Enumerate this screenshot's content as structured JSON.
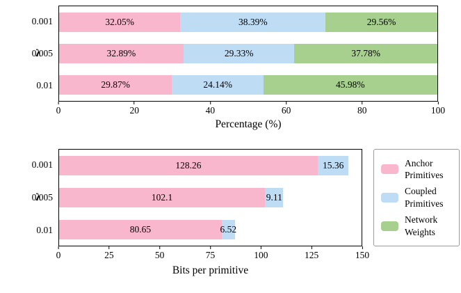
{
  "chart_data": [
    {
      "type": "bar",
      "subtype": "stacked-horizontal",
      "title": "",
      "xlabel": "Percentage (%)",
      "ylabel": "λ",
      "categories": [
        "0.001",
        "0.005",
        "0.01"
      ],
      "xlim": [
        0,
        100
      ],
      "xticks": [
        "0",
        "20",
        "40",
        "60",
        "80",
        "100"
      ],
      "grid": false,
      "series": [
        {
          "name": "Anchor Primitives",
          "color": "#f9b7ce",
          "values": [
            32.05,
            32.89,
            29.87
          ],
          "labels": [
            "32.05%",
            "32.89%",
            "29.87%"
          ]
        },
        {
          "name": "Coupled Primitives",
          "color": "#bedcf4",
          "values": [
            38.39,
            29.33,
            24.14
          ],
          "labels": [
            "38.39%",
            "29.33%",
            "24.14%"
          ]
        },
        {
          "name": "Network Weights",
          "color": "#a7cf8d",
          "values": [
            29.56,
            37.78,
            45.98
          ],
          "labels": [
            "29.56%",
            "37.78%",
            "45.98%"
          ]
        }
      ]
    },
    {
      "type": "bar",
      "subtype": "stacked-horizontal",
      "title": "",
      "xlabel": "Bits per primitive",
      "ylabel": "λ",
      "categories": [
        "0.001",
        "0.005",
        "0.01"
      ],
      "xlim": [
        0,
        150
      ],
      "xticks": [
        "0",
        "25",
        "50",
        "75",
        "100",
        "125",
        "150"
      ],
      "grid": false,
      "series": [
        {
          "name": "Anchor Primitives",
          "color": "#f9b7ce",
          "values": [
            128.26,
            102.1,
            80.65
          ],
          "labels": [
            "128.26",
            "102.1",
            "80.65"
          ]
        },
        {
          "name": "Coupled Primitives",
          "color": "#bedcf4",
          "values": [
            15.36,
            9.11,
            6.52
          ],
          "labels": [
            "15.36",
            "9.11",
            "6.52"
          ]
        }
      ]
    }
  ],
  "legend": {
    "position": "right",
    "entries": [
      {
        "label": "Anchor Primitives",
        "color": "#f9b7ce"
      },
      {
        "label": "Coupled Primitives",
        "color": "#bedcf4"
      },
      {
        "label": "Network Weights",
        "color": "#a7cf8d"
      }
    ]
  }
}
